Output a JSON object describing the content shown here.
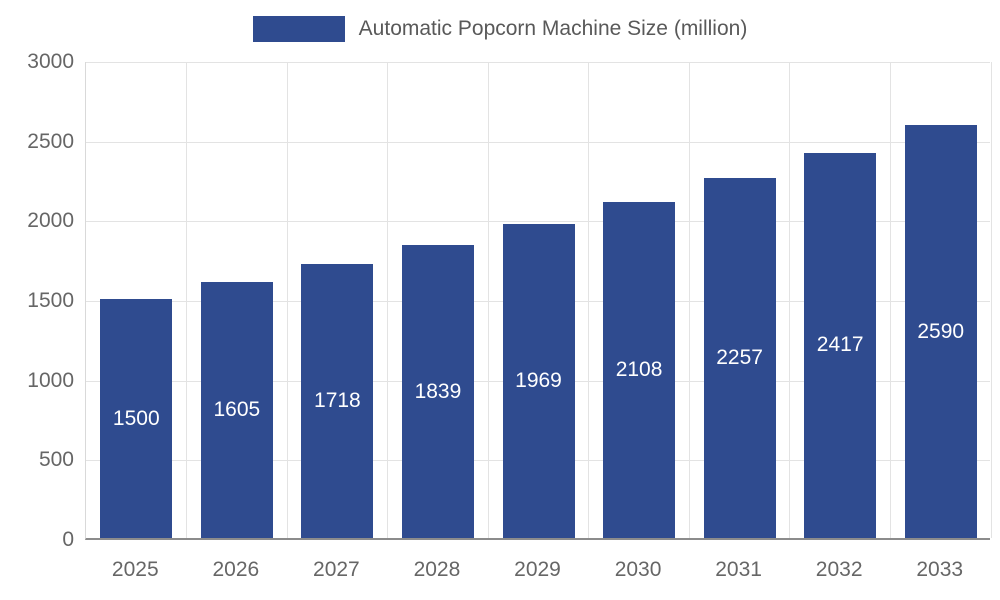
{
  "chart_data": {
    "type": "bar",
    "title": "Automatic Popcorn Machine Size (million)",
    "legend": {
      "entries": [
        "Automatic Popcorn Machine Size (million)"
      ],
      "position": "top"
    },
    "categories": [
      "2025",
      "2026",
      "2027",
      "2028",
      "2029",
      "2030",
      "2031",
      "2032",
      "2033"
    ],
    "series": [
      {
        "name": "Automatic Popcorn Machine Size (million)",
        "values": [
          1500,
          1605,
          1718,
          1839,
          1969,
          2108,
          2257,
          2417,
          2590
        ]
      }
    ],
    "data_labels": [
      "1500",
      "1605",
      "1718",
      "1839",
      "1969",
      "2108",
      "2257",
      "2417",
      "2590"
    ],
    "xlabel": "",
    "ylabel": "",
    "ylim": [
      0,
      3000
    ],
    "yticks": [
      0,
      500,
      1000,
      1500,
      2000,
      2500,
      3000
    ],
    "grid": true,
    "colors": {
      "bar": "#2F4B8F",
      "bar_label_text": "#ffffff",
      "axis_text": "#666666",
      "grid_line": "#e3e3e3",
      "axis_line": "#8c8c8c",
      "title_text": "#595959"
    }
  }
}
